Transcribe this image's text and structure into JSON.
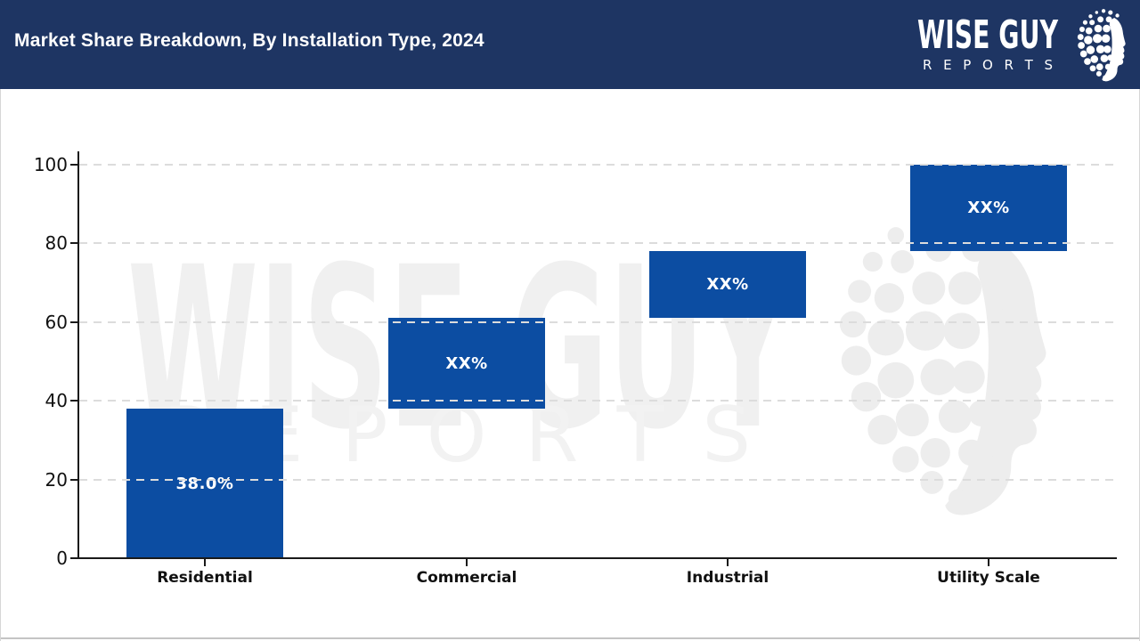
{
  "header": {
    "title": "Market Share Breakdown, By Installation Type, 2024",
    "bg_color": "#1e3563",
    "logo": {
      "line1": "WISE GUY",
      "line2": "R E P O R T S"
    }
  },
  "watermark": {
    "line1": "WISE GUY",
    "line2": "R E P O R T S"
  },
  "chart_data": {
    "type": "bar",
    "subtype": "floating-waterfall",
    "title": "Market Share Breakdown, By Installation Type, 2024",
    "categories": [
      "Residential",
      "Commercial",
      "Industrial",
      "Utility Scale"
    ],
    "segments": [
      {
        "category": "Residential",
        "start": 0,
        "end": 38,
        "label": "38.0%"
      },
      {
        "category": "Commercial",
        "start": 38,
        "end": 61,
        "label": "XX%"
      },
      {
        "category": "Industrial",
        "start": 61,
        "end": 78,
        "label": "XX%"
      },
      {
        "category": "Utility Scale",
        "start": 78,
        "end": 100,
        "label": "XX%"
      }
    ],
    "yticks": [
      0,
      20,
      40,
      60,
      80,
      100
    ],
    "ylim": [
      0,
      103.5
    ],
    "xlabel": "",
    "ylabel": "",
    "grid": true,
    "grid_style": "dashed",
    "legend": "none",
    "bar_color": "#0c4da2",
    "bar_label_color": "#ffffff",
    "axis_color": "#1a1a1a",
    "grid_color": "#dcdcdc"
  }
}
